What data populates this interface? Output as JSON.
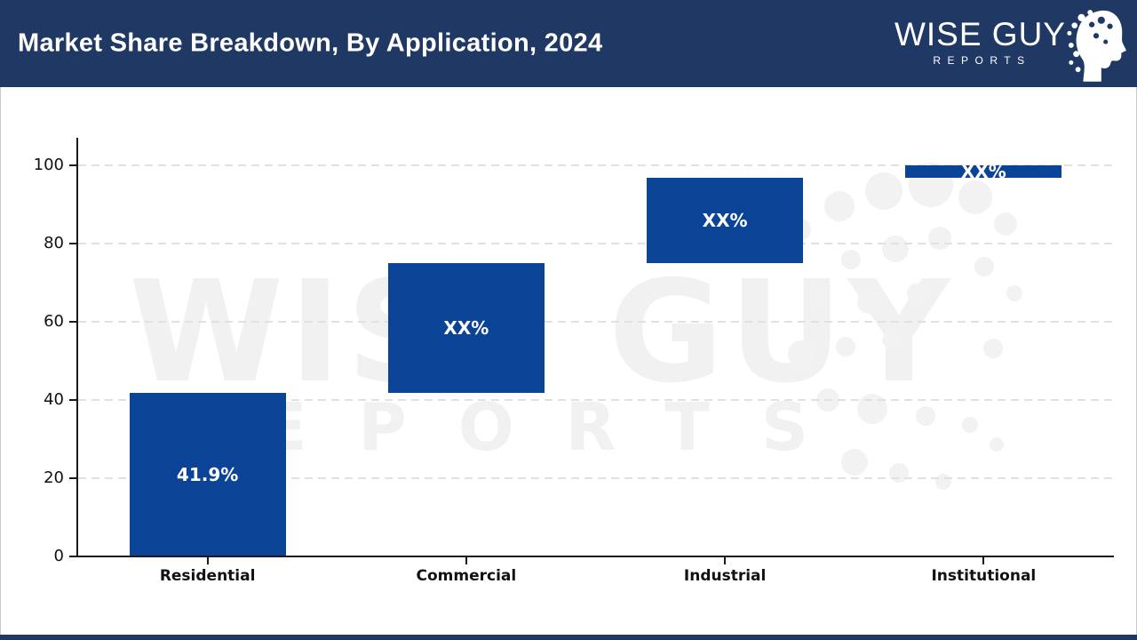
{
  "header": {
    "title": "Market Share Breakdown, By Application, 2024",
    "background_color": "#1f3864",
    "logo": {
      "line1": "WISE GUY",
      "line2": "REPORTS"
    }
  },
  "watermark": {
    "line1": "WISE GUY",
    "line2": "REPORTS"
  },
  "chart_data": {
    "type": "bar",
    "variant": "waterfall",
    "title": "Market Share Breakdown, By Application, 2024",
    "categories": [
      "Residential",
      "Commercial",
      "Industrial",
      "Institutional"
    ],
    "segments": [
      {
        "category": "Residential",
        "start": 0,
        "end": 41.9,
        "label": "41.9%"
      },
      {
        "category": "Commercial",
        "start": 41.9,
        "end": 75.1,
        "label": "XX%"
      },
      {
        "category": "Industrial",
        "start": 75.1,
        "end": 96.9,
        "label": "XX%"
      },
      {
        "category": "Institutional",
        "start": 96.9,
        "end": 100,
        "label": "XX%"
      }
    ],
    "xlabel": "",
    "ylabel": "",
    "ylim": [
      0,
      100
    ],
    "yticks": [
      0,
      20,
      40,
      60,
      80,
      100
    ],
    "bar_color": "#0b4397",
    "bar_label_color": "#ffffff",
    "grid": {
      "axis": "y",
      "style": "dashed",
      "color": "#e1e1e1"
    },
    "legend_position": "none"
  }
}
